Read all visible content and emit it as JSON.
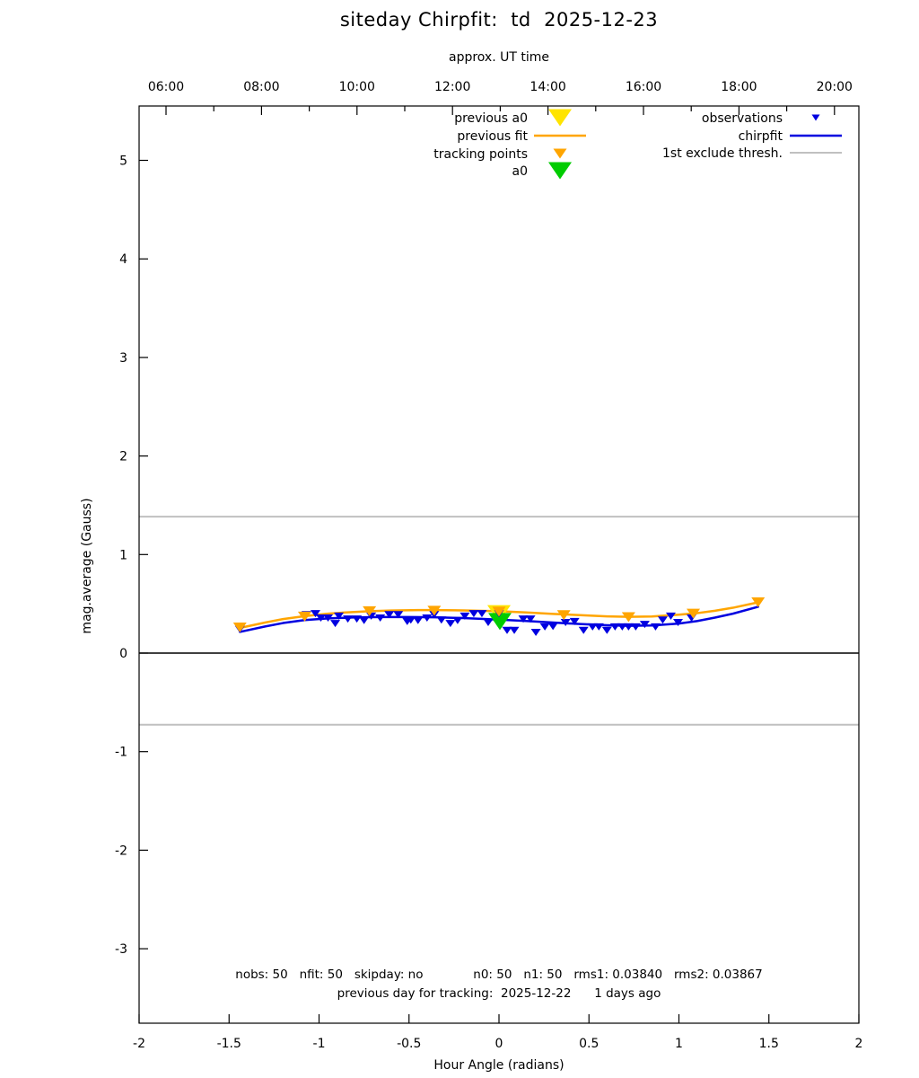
{
  "title": "siteday Chirpfit:  td  2025-12-23",
  "colors": {
    "blue": "#0000e0",
    "orange": "#ffa500",
    "yellow": "#ffe400",
    "green": "#00cc00",
    "gray": "#c0c0c0",
    "black": "#000000",
    "background": "#ffffff"
  },
  "stats": {
    "line1": "nobs: 50   nfit: 50   skipday: no             n0: 50   n1: 50   rms1: 0.03840   rms2: 0.03867",
    "line2": "previous day for tracking:  2025-12-22      1 days ago"
  },
  "chart_data": {
    "type": "scatter",
    "title": "siteday Chirpfit:  td  2025-12-23",
    "xlabel": "Hour Angle (radians)",
    "ylabel": "mag.average (Gauss)",
    "x2label": "approx. UT time",
    "xlim": [
      -2,
      2
    ],
    "ylim": [
      -3.76,
      5.55
    ],
    "grid": false,
    "x_ticks": [
      {
        "v": -2,
        "label": "-2"
      },
      {
        "v": -1.5,
        "label": "-1.5"
      },
      {
        "v": -1,
        "label": "-1"
      },
      {
        "v": -0.5,
        "label": "-0.5"
      },
      {
        "v": 0,
        "label": "0"
      },
      {
        "v": 0.5,
        "label": "0.5"
      },
      {
        "v": 1,
        "label": "1"
      },
      {
        "v": 1.5,
        "label": "1.5"
      },
      {
        "v": 2,
        "label": "2"
      }
    ],
    "y_ticks": [
      {
        "v": -3,
        "label": "-3"
      },
      {
        "v": -2,
        "label": "-2"
      },
      {
        "v": -1,
        "label": "-1"
      },
      {
        "v": 0,
        "label": "0"
      },
      {
        "v": 1,
        "label": "1"
      },
      {
        "v": 2,
        "label": "2"
      },
      {
        "v": 3,
        "label": "3"
      },
      {
        "v": 4,
        "label": "4"
      },
      {
        "v": 5,
        "label": "5"
      }
    ],
    "ut_ticks": [
      {
        "hour": 6,
        "label": "06:00"
      },
      {
        "hour": 7,
        "label": ""
      },
      {
        "hour": 8,
        "label": "08:00"
      },
      {
        "hour": 9,
        "label": ""
      },
      {
        "hour": 10,
        "label": "10:00"
      },
      {
        "hour": 11,
        "label": ""
      },
      {
        "hour": 12,
        "label": "12:00"
      },
      {
        "hour": 13,
        "label": ""
      },
      {
        "hour": 14,
        "label": "14:00"
      },
      {
        "hour": 15,
        "label": ""
      },
      {
        "hour": 16,
        "label": "16:00"
      },
      {
        "hour": 17,
        "label": ""
      },
      {
        "hour": 18,
        "label": "18:00"
      },
      {
        "hour": 19,
        "label": ""
      },
      {
        "hour": 20,
        "label": "20:00"
      }
    ],
    "zero_line_y": 0,
    "exclude_thresholds": [
      1.385,
      -0.727
    ],
    "series": {
      "previous_fit": {
        "kind": "line",
        "color_key": "orange",
        "points": [
          [
            -1.44,
            0.255
          ],
          [
            -1.3,
            0.31
          ],
          [
            -1.2,
            0.345
          ],
          [
            -1.08,
            0.375
          ],
          [
            -0.95,
            0.4
          ],
          [
            -0.85,
            0.413
          ],
          [
            -0.72,
            0.425
          ],
          [
            -0.6,
            0.432
          ],
          [
            -0.45,
            0.436
          ],
          [
            -0.36,
            0.436
          ],
          [
            -0.2,
            0.433
          ],
          [
            0,
            0.425
          ],
          [
            0.15,
            0.413
          ],
          [
            0.3,
            0.398
          ],
          [
            0.45,
            0.385
          ],
          [
            0.6,
            0.373
          ],
          [
            0.72,
            0.368
          ],
          [
            0.85,
            0.372
          ],
          [
            1.0,
            0.39
          ],
          [
            1.1,
            0.405
          ],
          [
            1.2,
            0.43
          ],
          [
            1.3,
            0.46
          ],
          [
            1.44,
            0.515
          ]
        ]
      },
      "chirpfit": {
        "kind": "line",
        "color_key": "blue",
        "points": [
          [
            -1.44,
            0.215
          ],
          [
            -1.3,
            0.27
          ],
          [
            -1.2,
            0.305
          ],
          [
            -1.08,
            0.335
          ],
          [
            -0.95,
            0.352
          ],
          [
            -0.8,
            0.362
          ],
          [
            -0.65,
            0.366
          ],
          [
            -0.5,
            0.366
          ],
          [
            -0.36,
            0.363
          ],
          [
            -0.2,
            0.355
          ],
          [
            0,
            0.34
          ],
          [
            0.15,
            0.326
          ],
          [
            0.3,
            0.31
          ],
          [
            0.45,
            0.295
          ],
          [
            0.6,
            0.283
          ],
          [
            0.72,
            0.277
          ],
          [
            0.85,
            0.28
          ],
          [
            1.0,
            0.3
          ],
          [
            1.1,
            0.325
          ],
          [
            1.2,
            0.36
          ],
          [
            1.3,
            0.4
          ],
          [
            1.44,
            0.47
          ]
        ]
      },
      "previous_a0": {
        "kind": "points",
        "marker": "triangle-down",
        "size": "large",
        "color_key": "yellow",
        "points": [
          [
            0,
            0.4
          ]
        ]
      },
      "a0": {
        "kind": "points",
        "marker": "triangle-down",
        "size": "large",
        "color_key": "green",
        "points": [
          [
            0.005,
            0.32
          ]
        ]
      },
      "observations": {
        "kind": "points",
        "marker": "triangle-down",
        "size": "small",
        "color_key": "blue",
        "points": [
          [
            -1.44,
            0.24
          ],
          [
            -1.07,
            0.39
          ],
          [
            -1.02,
            0.4
          ],
          [
            -0.99,
            0.355
          ],
          [
            -0.95,
            0.355
          ],
          [
            -0.91,
            0.3
          ],
          [
            -0.89,
            0.375
          ],
          [
            -0.84,
            0.345
          ],
          [
            -0.79,
            0.345
          ],
          [
            -0.75,
            0.33
          ],
          [
            -0.71,
            0.375
          ],
          [
            -0.66,
            0.355
          ],
          [
            -0.61,
            0.39
          ],
          [
            -0.56,
            0.39
          ],
          [
            -0.51,
            0.32
          ],
          [
            -0.49,
            0.335
          ],
          [
            -0.45,
            0.33
          ],
          [
            -0.4,
            0.355
          ],
          [
            -0.36,
            0.39
          ],
          [
            -0.32,
            0.335
          ],
          [
            -0.27,
            0.3
          ],
          [
            -0.23,
            0.33
          ],
          [
            -0.19,
            0.375
          ],
          [
            -0.14,
            0.4
          ],
          [
            -0.095,
            0.4
          ],
          [
            -0.06,
            0.31
          ],
          [
            0.0,
            0.4
          ],
          [
            0.045,
            0.23
          ],
          [
            0.085,
            0.23
          ],
          [
            0.135,
            0.345
          ],
          [
            0.175,
            0.345
          ],
          [
            0.205,
            0.21
          ],
          [
            0.255,
            0.265
          ],
          [
            0.3,
            0.27
          ],
          [
            0.37,
            0.31
          ],
          [
            0.42,
            0.32
          ],
          [
            0.47,
            0.23
          ],
          [
            0.52,
            0.265
          ],
          [
            0.555,
            0.265
          ],
          [
            0.6,
            0.23
          ],
          [
            0.645,
            0.265
          ],
          [
            0.685,
            0.265
          ],
          [
            0.72,
            0.265
          ],
          [
            0.76,
            0.265
          ],
          [
            0.81,
            0.29
          ],
          [
            0.87,
            0.265
          ],
          [
            0.91,
            0.335
          ],
          [
            0.955,
            0.375
          ],
          [
            0.995,
            0.31
          ],
          [
            1.07,
            0.355
          ]
        ]
      },
      "tracking_points": {
        "kind": "points",
        "marker": "triangle-down",
        "size": "medium",
        "color_key": "orange",
        "points": [
          [
            -1.44,
            0.26
          ],
          [
            -1.08,
            0.37
          ],
          [
            -0.72,
            0.425
          ],
          [
            -0.36,
            0.43
          ],
          [
            0,
            0.42
          ],
          [
            0.36,
            0.385
          ],
          [
            0.72,
            0.365
          ],
          [
            1.08,
            0.4
          ],
          [
            1.44,
            0.515
          ]
        ]
      }
    },
    "legend": {
      "left": [
        {
          "label": "previous a0",
          "swatch": "triangle-large",
          "color_key": "yellow"
        },
        {
          "label": "previous fit",
          "swatch": "line",
          "color_key": "orange"
        },
        {
          "label": "tracking points",
          "swatch": "triangle-medium",
          "color_key": "orange"
        },
        {
          "label": "a0",
          "swatch": "triangle-large",
          "color_key": "green"
        }
      ],
      "right": [
        {
          "label": "observations",
          "swatch": "triangle-small",
          "color_key": "blue"
        },
        {
          "label": "chirpfit",
          "swatch": "line",
          "color_key": "blue"
        },
        {
          "label": "1st exclude thresh.",
          "swatch": "line",
          "color_key": "gray"
        }
      ]
    },
    "stats_line1": "nobs: 50   nfit: 50   skipday: no             n0: 50   n1: 50   rms1: 0.03840   rms2: 0.03867",
    "stats_line2": "previous day for tracking:  2025-12-22      1 days ago"
  }
}
